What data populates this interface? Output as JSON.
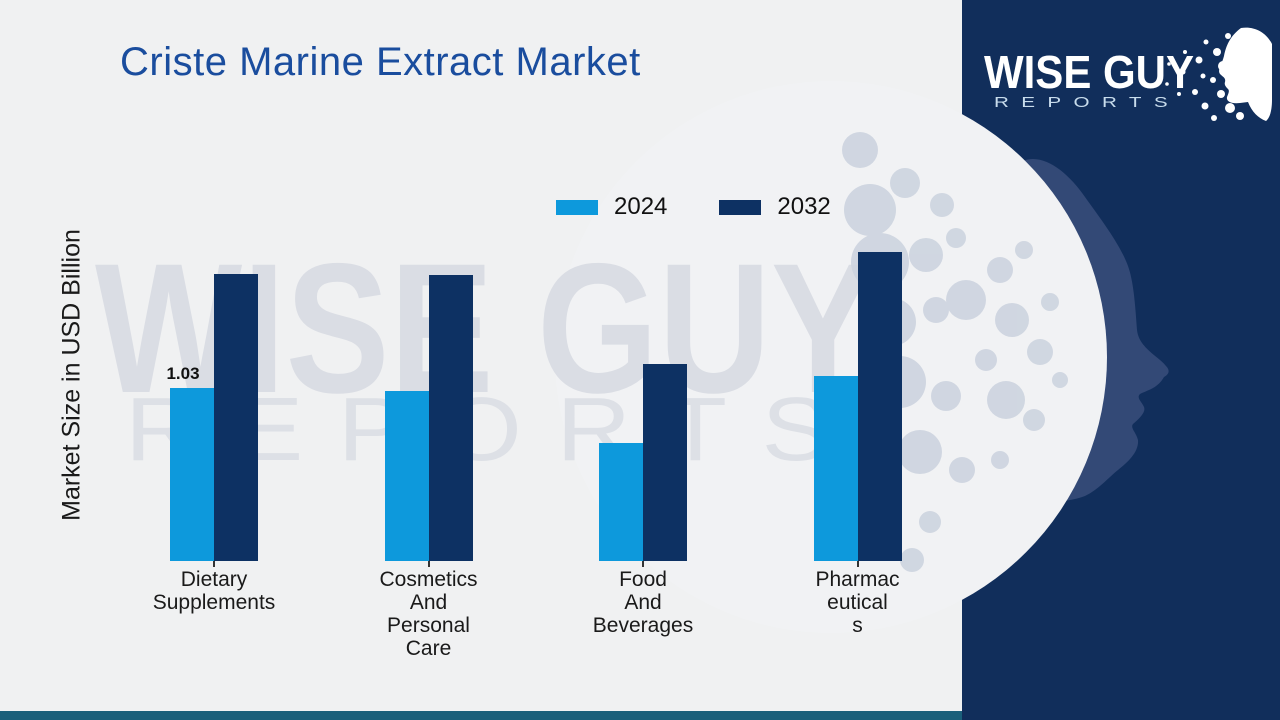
{
  "page": {
    "background_color": "#f0f1f2",
    "bottom_bar_color": "#1a5f7a"
  },
  "header": {
    "title": "Criste Marine Extract Market",
    "title_color": "#1a4d9e"
  },
  "chart_data": {
    "type": "bar",
    "title": "Criste Marine Extract Market",
    "xlabel": "",
    "ylabel": "Market Size in USD Billion",
    "ylim": [
      0,
      2
    ],
    "grid": false,
    "legend_position": "top-center",
    "categories": [
      "Dietary Supplements",
      "Cosmetics And Personal Care",
      "Food And Beverages",
      "Pharmaceuticals"
    ],
    "category_display_lines": [
      [
        "Dietary",
        "Supplements"
      ],
      [
        "Cosmetics",
        "And",
        "Personal",
        "Care"
      ],
      [
        "Food",
        "And",
        "Beverages"
      ],
      [
        "Pharmac",
        "eutical",
        "s"
      ]
    ],
    "series": [
      {
        "name": "2024",
        "color": "#0d99dc",
        "values": [
          1.03,
          1.01,
          0.7,
          1.1
        ]
      },
      {
        "name": "2032",
        "color": "#0d3163",
        "values": [
          1.71,
          1.7,
          1.17,
          1.84
        ]
      }
    ],
    "bar_labels": [
      {
        "series": "2024",
        "category": "Dietary Supplements",
        "text": "1.03"
      }
    ]
  },
  "legend": {
    "items": [
      {
        "label": "2024",
        "color": "#0d99dc"
      },
      {
        "label": "2032",
        "color": "#0d3163"
      }
    ]
  },
  "logo": {
    "brand_line1": "WISE GUY",
    "brand_line2": "REPORTS",
    "panel_color": "#112e5b",
    "face_silhouette_color": "#334976",
    "brand_text_color": "#ffffff",
    "reports_text_color": "#c8dcec"
  },
  "watermark": {
    "line1": "WISE GUY",
    "line2": "REPORTS",
    "text_color": "#dadde4"
  }
}
